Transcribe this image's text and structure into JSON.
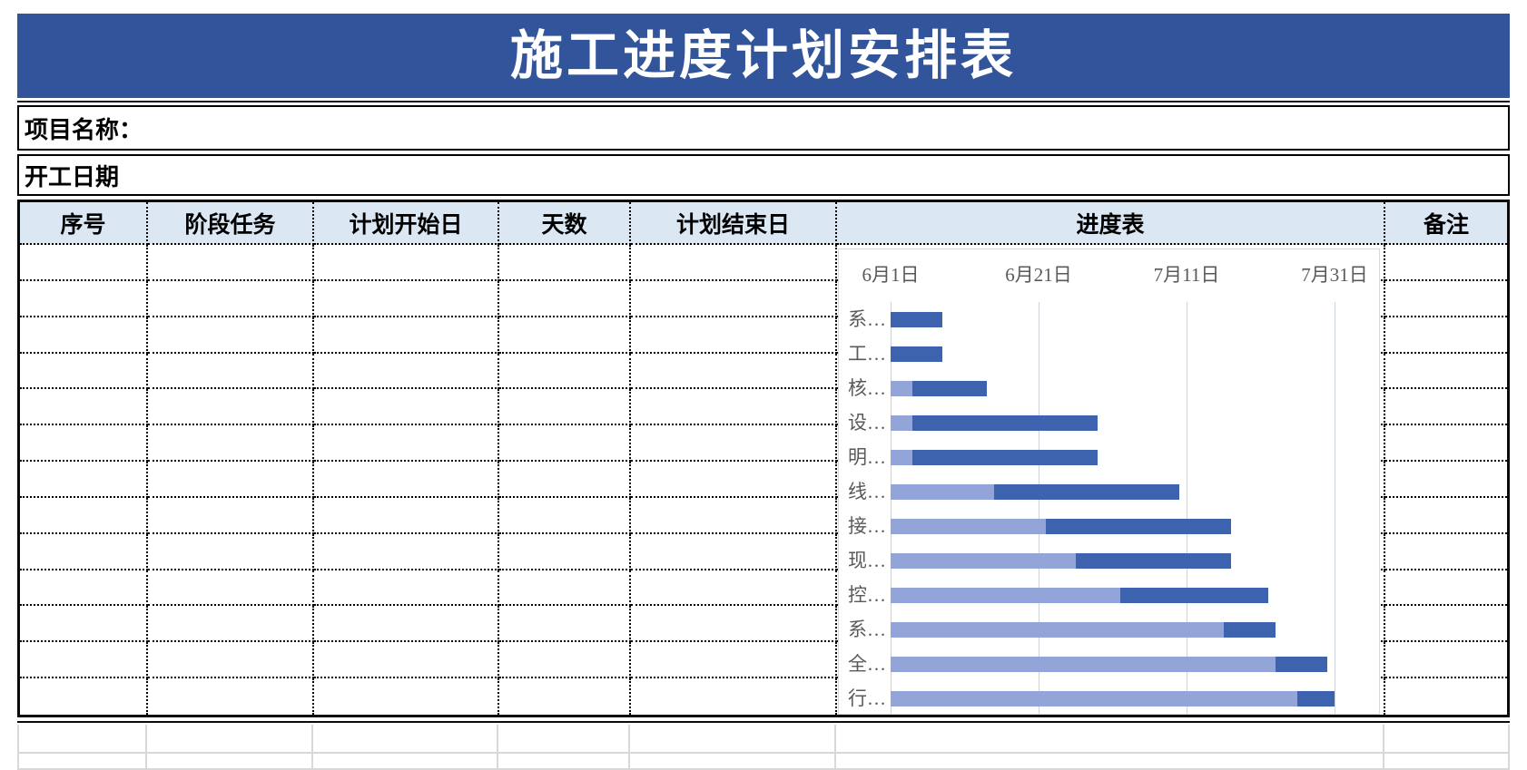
{
  "title": "施工进度计划安排表",
  "project": {
    "name_label": "项目名称：",
    "name_value": "",
    "start_date_label": "开工日期",
    "start_date_value": ""
  },
  "table": {
    "headers": [
      "序号",
      "阶段任务",
      "计划开始日",
      "天数",
      "计划结束日",
      "进度表",
      "备注"
    ],
    "body_row_count": 13,
    "column_count": 7
  },
  "chart_data": {
    "type": "bar",
    "subtype": "gantt-horizontal-stacked",
    "title": "",
    "x_axis": {
      "position": "top",
      "tick_labels": [
        "6月1日",
        "6月21日",
        "7月11日",
        "7月31日"
      ],
      "tick_days": [
        0,
        20,
        40,
        60
      ],
      "range_days": [
        0,
        60
      ]
    },
    "categories": [
      "系…",
      "工…",
      "核…",
      "设…",
      "明…",
      "线…",
      "接…",
      "现…",
      "控…",
      "系…",
      "全…",
      "行…"
    ],
    "series": [
      {
        "name": "start-offset",
        "color": "#93A5D8",
        "values_days": [
          0,
          0,
          3,
          3,
          3,
          14,
          21,
          25,
          31,
          45,
          52,
          55
        ]
      },
      {
        "name": "duration",
        "color": "#3D63AE",
        "values_days": [
          7,
          7,
          10,
          25,
          25,
          25,
          25,
          21,
          20,
          7,
          7,
          5
        ]
      }
    ],
    "grid": "vertical",
    "legend": "none"
  },
  "colors": {
    "banner": "#32549A",
    "header_bg": "#DBE8F4",
    "bar_light": "#93A5D8",
    "bar_dark": "#3D63AE",
    "chart_label": "#595959",
    "gridline": "#CDD3DA",
    "table_border": "#000000",
    "bottom_grid_border": "#D8D8D8"
  }
}
